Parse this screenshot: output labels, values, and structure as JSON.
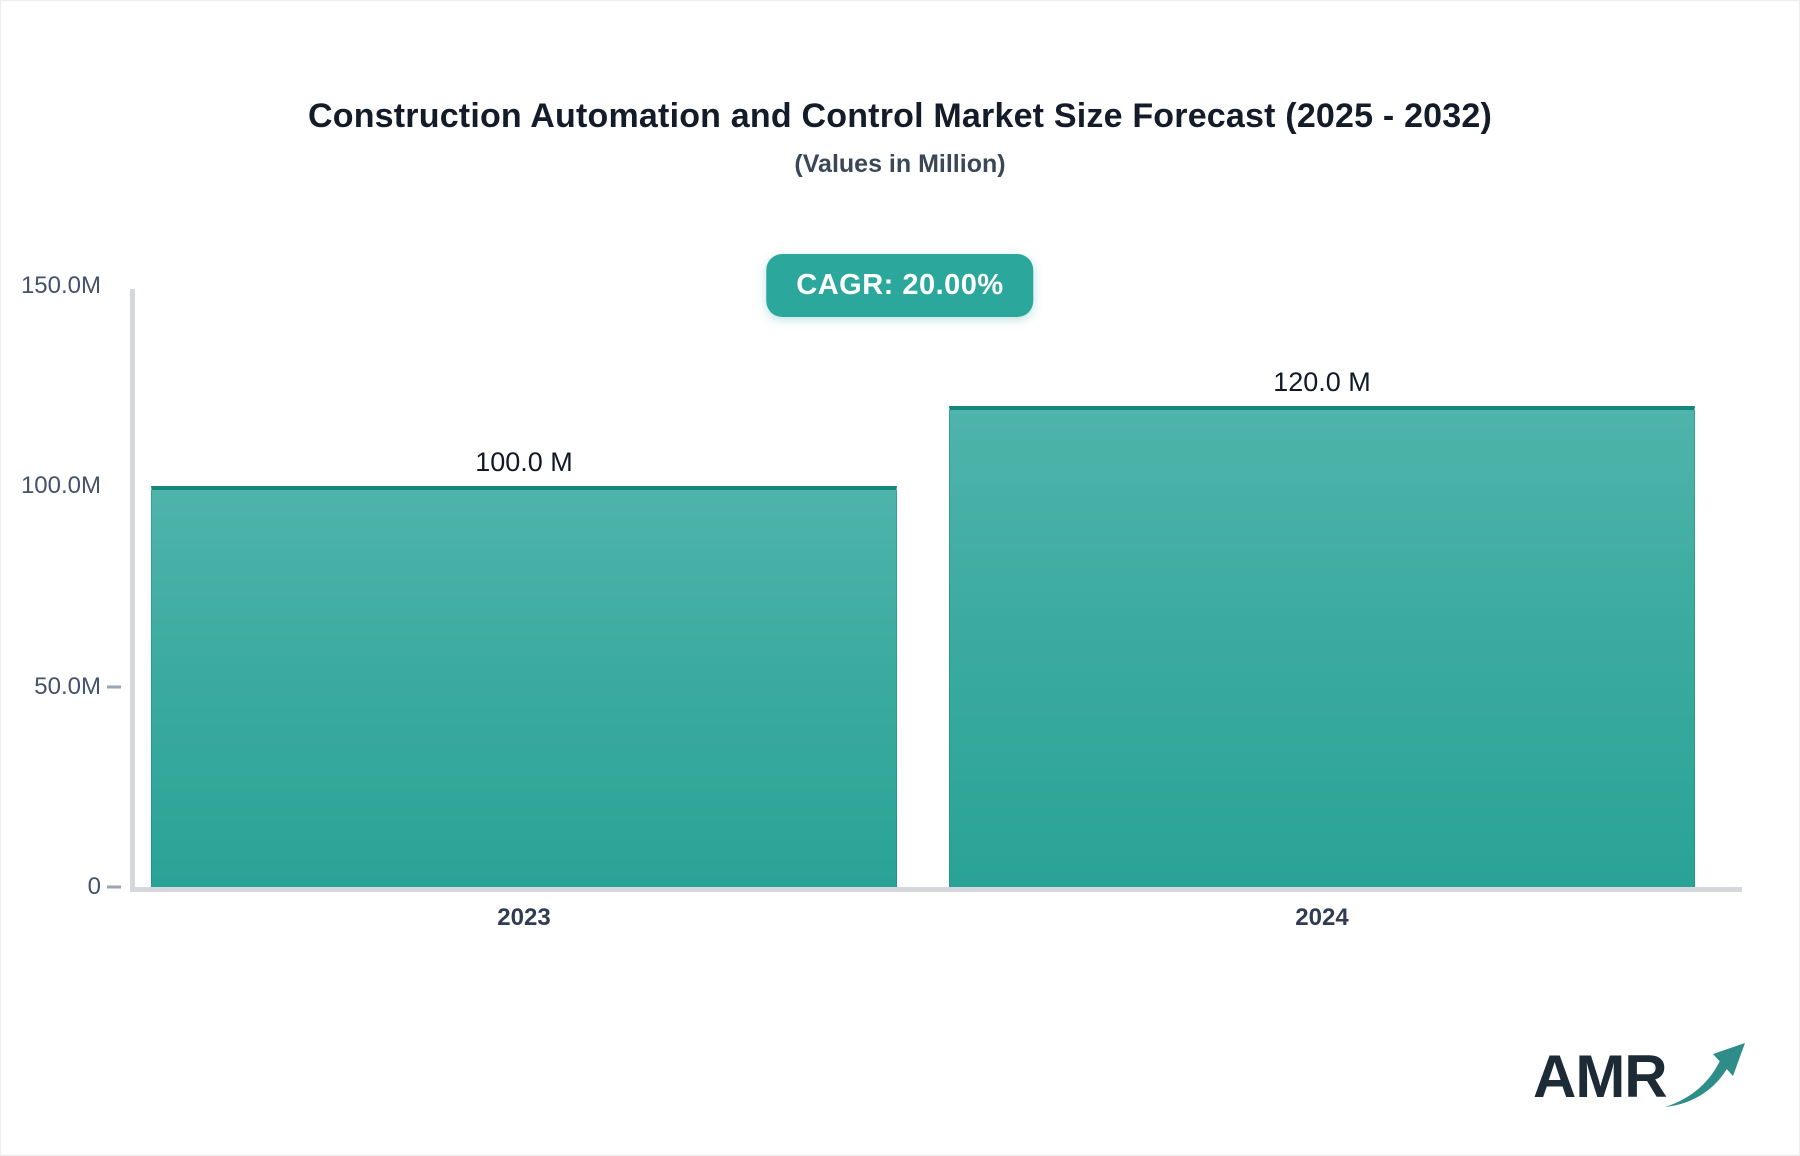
{
  "title": "Construction Automation and Control Market Size Forecast (2025 - 2032)",
  "subtitle": "(Values in Million)",
  "badge": {
    "label": "CAGR: 20.00%"
  },
  "logo": {
    "text": "AMR"
  },
  "colors": {
    "accent_teal": "#2ba89b",
    "bar_gradient_top": "#4fb4ab",
    "bar_gradient_bottom": "#29a396",
    "bar_top_border": "#16857b",
    "axis_line": "#d4d8de",
    "title_text": "#131c28",
    "axis_label_text": "#44526b",
    "logo_navy": "#1d2b36",
    "logo_arrow_teal": "#2e8d88"
  },
  "chart_data": {
    "type": "bar",
    "title": "Construction Automation and Control Market Size Forecast (2025 - 2032)",
    "subtitle": "(Values in Million)",
    "unit": "Million",
    "categories": [
      "2023",
      "2024"
    ],
    "values": [
      100.0,
      120.0
    ],
    "value_labels": [
      "100.0 M",
      "120.0 M"
    ],
    "cagr": "20.00%",
    "xlabel": "",
    "ylabel": "",
    "ylim": [
      0,
      150
    ],
    "yticks": [
      {
        "label": "150.0M",
        "value": 150,
        "dash": false
      },
      {
        "label": "100.0M",
        "value": 100,
        "dash": false
      },
      {
        "label": "50.0M",
        "value": 50,
        "dash": true
      },
      {
        "label": "0",
        "value": 0,
        "dash": true
      }
    ],
    "grid": "off",
    "legend": "off"
  }
}
